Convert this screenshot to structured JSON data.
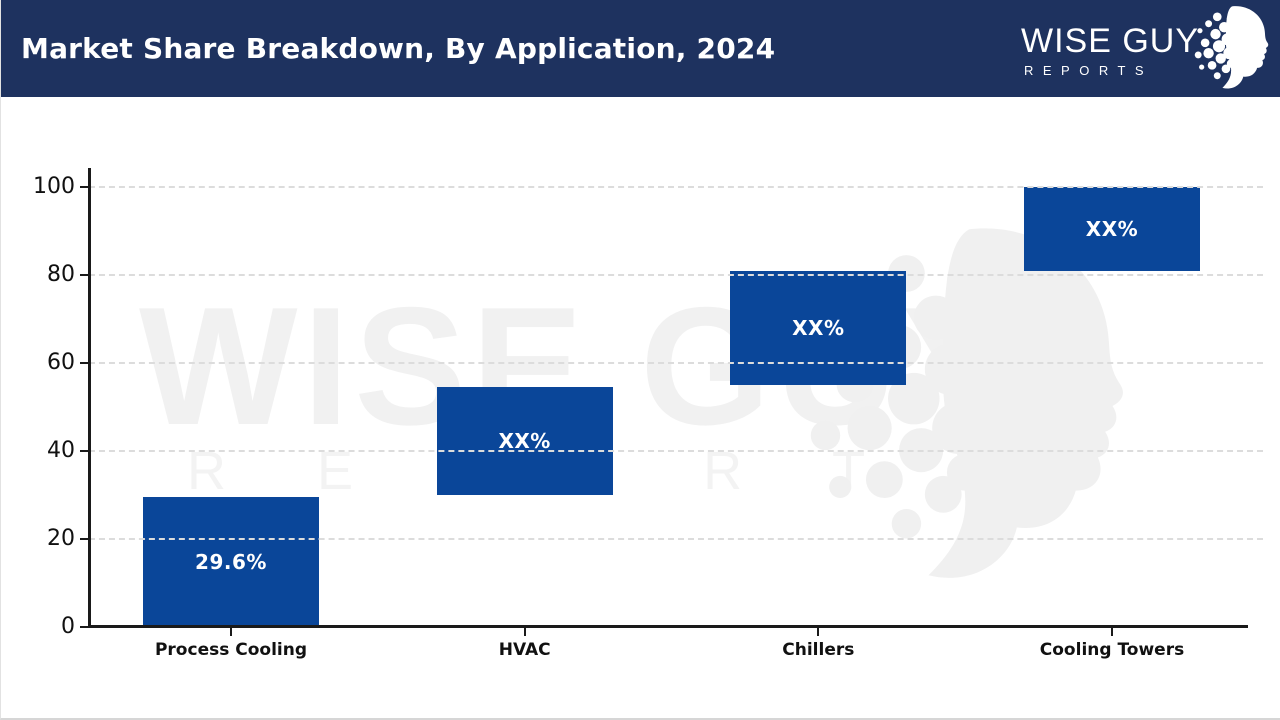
{
  "header": {
    "title": "Market Share Breakdown, By Application, 2024",
    "bg_color": "#1e325f",
    "logo": {
      "line1": "WISE GUY",
      "line2": "REPORTS"
    }
  },
  "watermark": {
    "line1": "WISE GUY",
    "line2": "R E P O R T S"
  },
  "chart_data": {
    "type": "bar",
    "subtype": "waterfall",
    "title": "Market Share Breakdown, By Application, 2024",
    "categories": [
      "Process Cooling",
      "HVAC",
      "Chillers",
      "Cooling Towers"
    ],
    "bars": [
      {
        "category": "Process Cooling",
        "start": 0,
        "end": 29.6,
        "label": "29.6%"
      },
      {
        "category": "HVAC",
        "start": 30,
        "end": 54.5,
        "label": "XX%"
      },
      {
        "category": "Chillers",
        "start": 55,
        "end": 81,
        "label": "XX%"
      },
      {
        "category": "Cooling Towers",
        "start": 81,
        "end": 100,
        "label": "XX%"
      }
    ],
    "bar_color": "#0a4699",
    "label_color": "#ffffff",
    "xlabel": "",
    "ylabel": "",
    "ylim": [
      0,
      100
    ],
    "yticks": [
      0,
      20,
      40,
      60,
      80,
      100
    ],
    "grid": true,
    "grid_style": "dashed",
    "legend": "none"
  }
}
